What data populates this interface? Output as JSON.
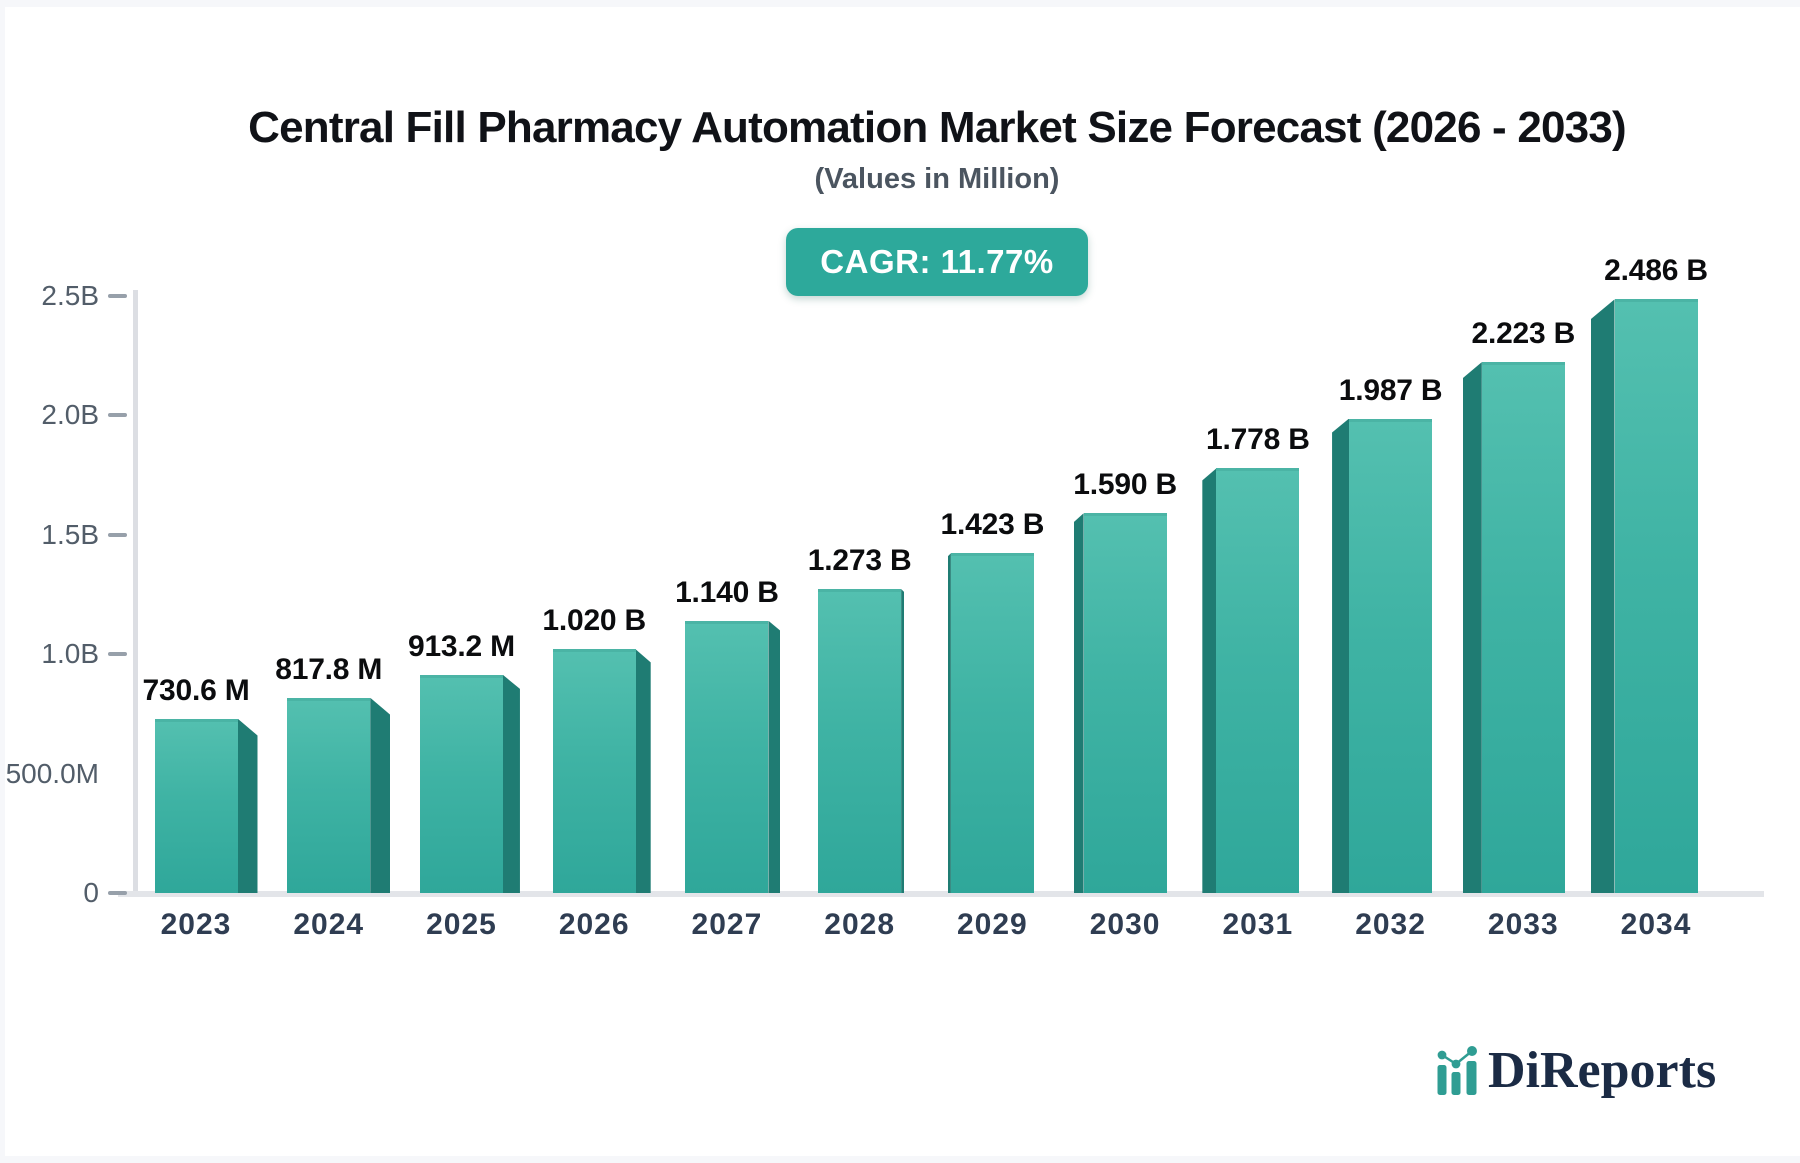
{
  "chart_data": {
    "type": "bar",
    "title": "Central Fill Pharmacy Automation Market Size Forecast (2026 - 2033)",
    "subtitle": "(Values in Million)",
    "cagr_badge": "CAGR: 11.77%",
    "categories": [
      "2023",
      "2024",
      "2025",
      "2026",
      "2027",
      "2028",
      "2029",
      "2030",
      "2031",
      "2032",
      "2033",
      "2034"
    ],
    "values_billions": [
      0.7306,
      0.8178,
      0.9132,
      1.02,
      1.14,
      1.273,
      1.423,
      1.59,
      1.778,
      1.987,
      2.223,
      2.486
    ],
    "value_labels": [
      "730.6 M",
      "817.8 M",
      "913.2 M",
      "1.020 B",
      "1.140 B",
      "1.273 B",
      "1.423 B",
      "1.590 B",
      "1.778 B",
      "1.987 B",
      "2.223 B",
      "2.486 B"
    ],
    "y_axis": {
      "ylim_billions": [
        0,
        2.5
      ],
      "grid": false,
      "ticks": [
        {
          "label": "2.5B",
          "value": 2.5,
          "dash": true
        },
        {
          "label": "2.0B",
          "value": 2.0,
          "dash": true
        },
        {
          "label": "1.5B",
          "value": 1.5,
          "dash": true
        },
        {
          "label": "1.0B",
          "value": 1.0,
          "dash": true
        },
        {
          "label": "500.0M",
          "value": 0.5,
          "dash": false
        },
        {
          "label": "0",
          "value": 0.0,
          "dash": true
        }
      ]
    },
    "legend": "none",
    "colors": {
      "bar_front_top": "#54c0b0",
      "bar_front_bottom": "#2fa79a",
      "bar_side": "#1f7c73",
      "badge_background": "#2da99b",
      "badge_text": "#ffffff",
      "axis_line": "#dcdee3",
      "tick_dash": "#97a0aa",
      "y_label": "#525d69",
      "x_label": "#2f3d52",
      "value_label": "#0b0c0e"
    }
  },
  "branding": {
    "logo_text": "DiReports"
  }
}
